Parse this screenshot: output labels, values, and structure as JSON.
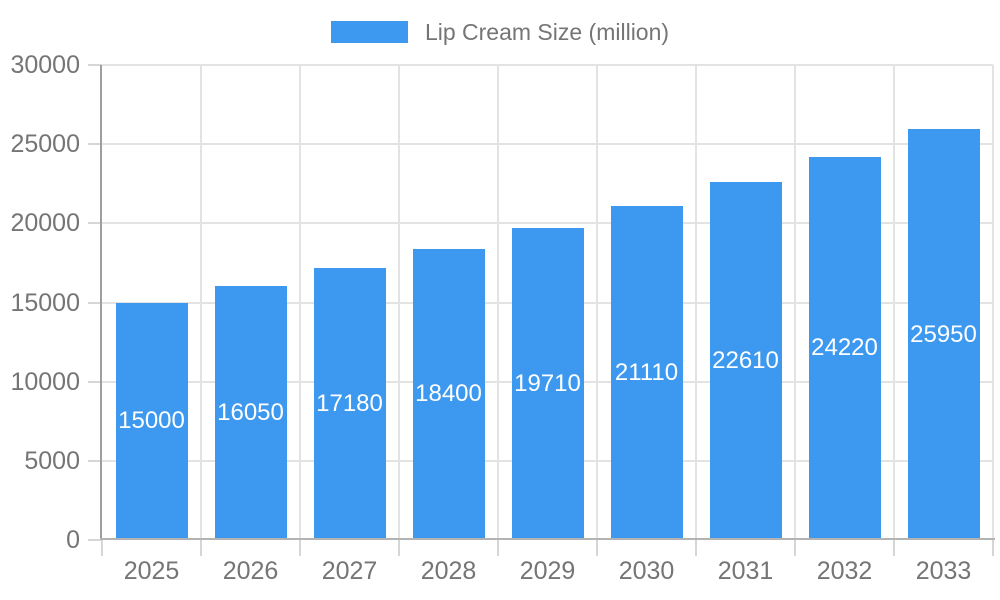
{
  "legend": {
    "label": "Lip Cream Size (million)"
  },
  "colors": {
    "background": "#ffffff",
    "bar": "#3d99f0",
    "bar_label": "#ffffff",
    "axis_label": "#757575",
    "grid_line": "#e3e3e3",
    "tick": "#d6d6d6",
    "y_axis_line": "#9e9e9e",
    "x_axis_line": "#b3b3b3"
  },
  "chart_data": {
    "type": "bar",
    "title": "Lip Cream Size (million)",
    "categories": [
      "2025",
      "2026",
      "2027",
      "2028",
      "2029",
      "2030",
      "2031",
      "2032",
      "2033"
    ],
    "series": [
      {
        "name": "Lip Cream Size (million)",
        "values": [
          15000,
          16050,
          17180,
          18400,
          19710,
          21110,
          22610,
          24220,
          25950
        ]
      }
    ],
    "bar_value_labels": [
      "15000",
      "16050",
      "17180",
      "18400",
      "19710",
      "21110",
      "22610",
      "24220",
      "25950"
    ],
    "xlabel": "",
    "ylabel": "",
    "ylim": [
      0,
      30000
    ],
    "yticks": [
      0,
      5000,
      10000,
      15000,
      20000,
      25000,
      30000
    ],
    "ytick_labels": [
      "0",
      "5000",
      "10000",
      "15000",
      "20000",
      "25000",
      "30000"
    ],
    "grid": true,
    "legend_position": "top-center"
  }
}
